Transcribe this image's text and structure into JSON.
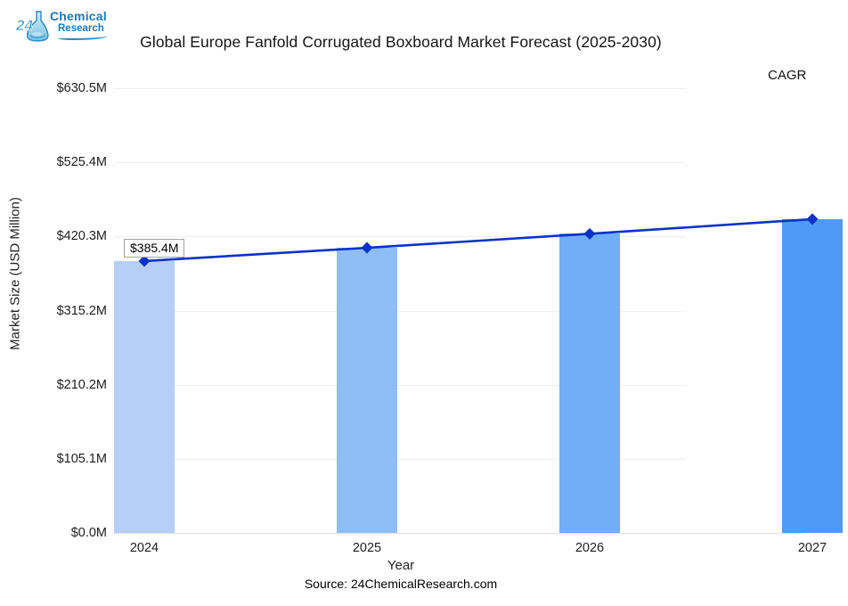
{
  "logo": {
    "number": "24",
    "name_top": "Chemical",
    "name_bottom": "Research"
  },
  "header": {
    "title": "Global Europe Fanfold Corrugated Boxboard Market Forecast (2025-2030)",
    "cagr_label": "CAGR"
  },
  "chart_data": {
    "type": "bar",
    "subtype": "bar-with-trend-line",
    "title": "Global Europe Fanfold Corrugated Boxboard Market Forecast (2025-2030)",
    "categories": [
      "2024",
      "2025",
      "2026",
      "2027"
    ],
    "values": [
      385.4,
      404.3,
      424.1,
      444.9
    ],
    "point_label": {
      "index": 0,
      "text": "$385.4M"
    },
    "xlabel": "Year",
    "ylabel": "Market Size (USD Million)",
    "ylim": [
      0,
      630.5
    ],
    "ytick_labels": [
      "$0.0M",
      "$105.1M",
      "$210.2M",
      "$315.2M",
      "$420.3M",
      "$525.4M",
      "$630.5M"
    ],
    "grid": true,
    "legend": false,
    "bar_colors": [
      "#b5cff7",
      "#8fbdf6",
      "#72aef8",
      "#4d9bf5"
    ],
    "line_color": "#0a32c8",
    "grid_color": "#efefef"
  },
  "footer": {
    "source": "Source: 24ChemicalResearch.com"
  }
}
